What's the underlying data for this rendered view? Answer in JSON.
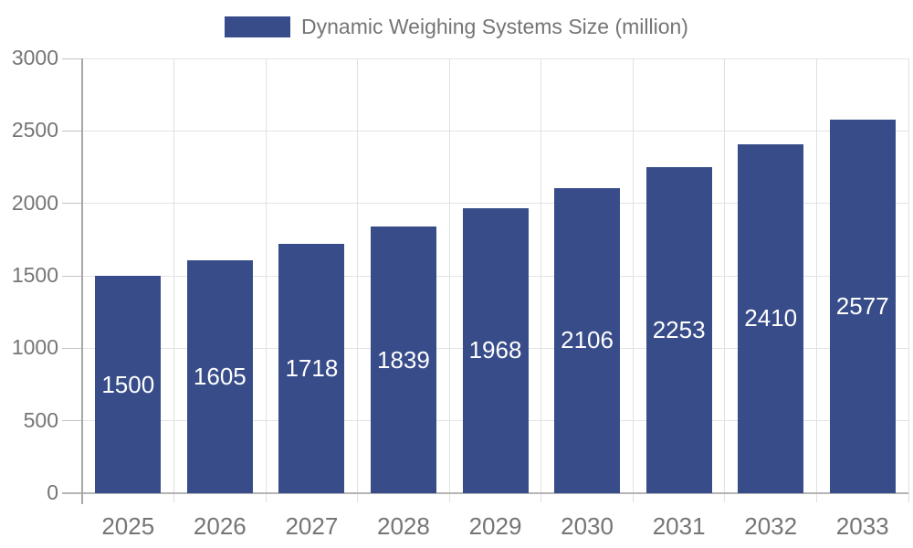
{
  "legend": {
    "label": "Dynamic Weighing Systems Size (million)"
  },
  "chart_data": {
    "type": "bar",
    "title": "Dynamic Weighing Systems Size (million)",
    "series_name": "Dynamic Weighing Systems Size (million)",
    "categories": [
      "2025",
      "2026",
      "2027",
      "2028",
      "2029",
      "2030",
      "2031",
      "2032",
      "2033"
    ],
    "values": [
      1500,
      1605,
      1718,
      1839,
      1968,
      2106,
      2253,
      2410,
      2577
    ],
    "data_labels": [
      "1500",
      "1605",
      "1718",
      "1839",
      "1968",
      "2106",
      "2253",
      "2410",
      "2577"
    ],
    "xlabel": "",
    "ylabel": "",
    "ylim": [
      0,
      3000
    ],
    "yticks": [
      0,
      500,
      1000,
      1500,
      2000,
      2500,
      3000
    ],
    "grid": "on",
    "legend_position": "top-center",
    "bar_color": "#374C89",
    "bar_label_color": "#ffffff",
    "axis_text_color": "#757575",
    "gridline_color": "#e3e3e3"
  }
}
